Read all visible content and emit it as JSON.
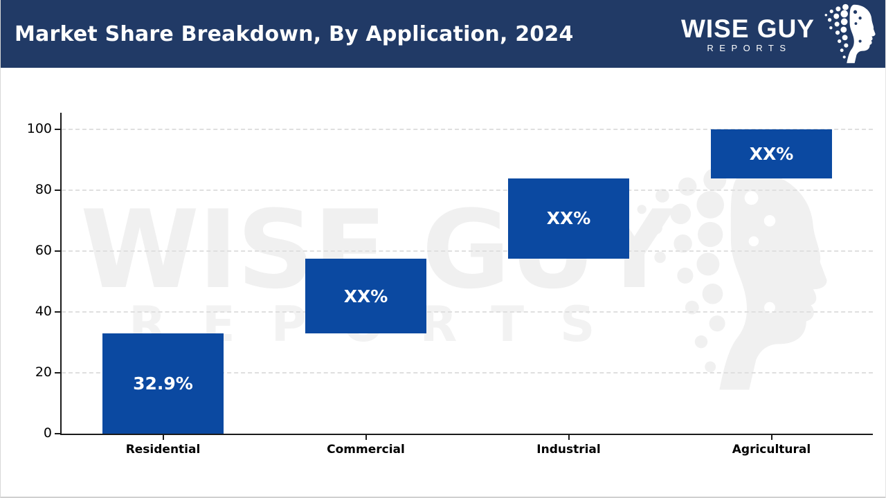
{
  "header": {
    "title": "Market Share Breakdown, By Application, 2024",
    "bg_color": "#213a66",
    "logo": {
      "line1": "WISE GUY",
      "line2": "REPORTS"
    }
  },
  "watermark": {
    "line1": "WISE GUY",
    "line2": "REPORTS"
  },
  "chart_data": {
    "type": "bar",
    "subtype": "waterfall",
    "title": "Market Share Breakdown, By Application, 2024",
    "categories": [
      "Residential",
      "Commercial",
      "Industrial",
      "Agricultural"
    ],
    "segments": [
      {
        "category": "Residential",
        "start": 0,
        "end": 32.9,
        "label": "32.9%"
      },
      {
        "category": "Commercial",
        "start": 32.9,
        "end": 57.5,
        "label": "XX%"
      },
      {
        "category": "Industrial",
        "start": 57.5,
        "end": 83.9,
        "label": "XX%"
      },
      {
        "category": "Agricultural",
        "start": 83.9,
        "end": 100,
        "label": "XX%"
      }
    ],
    "yticks": [
      0,
      20,
      40,
      60,
      80,
      100
    ],
    "ylim": [
      0,
      105
    ],
    "xlabel": "",
    "ylabel": "",
    "grid": "horizontal-dashed",
    "legend": "none",
    "bar_color": "#0b49a1",
    "bar_label_color": "#ffffff",
    "axis_color": "#1a1a1a",
    "gridline_color": "#dfdfdf"
  }
}
